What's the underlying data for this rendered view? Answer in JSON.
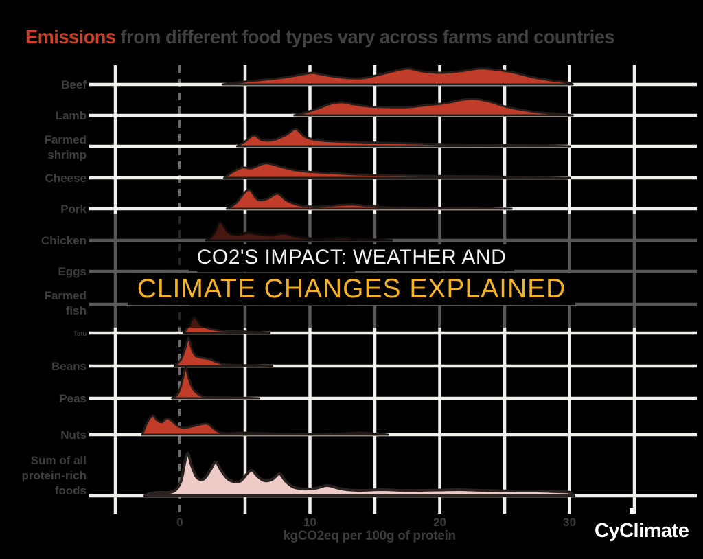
{
  "title": {
    "highlight": "Emissions",
    "rest": " from different food types vary across farms and countries"
  },
  "overlay": {
    "line1": "CO2'S IMPACT: WEATHER AND",
    "line2": "CLIMATE CHANGES EXPLAINED"
  },
  "watermark": "CyClimate",
  "colors": {
    "background": "#000000",
    "grid": "#f1efec",
    "ridge_fill": "#c23d29",
    "ridge_outline": "#241c19",
    "sum_fill": "#eecbc7",
    "sum_outline": "#2a2221",
    "zero_line": "#6b6b6b",
    "label_text": "#3d3d3d",
    "title_accent": "#c8422a",
    "title_text": "#414141",
    "overlay_line1": "#f2f2f2",
    "overlay_line2": "#f3b127",
    "watermark": "#ffffff"
  },
  "chart_data": {
    "type": "area",
    "subtype": "ridgeline",
    "title": "Emissions from different food types vary across farms and countries",
    "xlabel": "kgCO2eq per 100g of protein",
    "x_ticks": [
      0,
      10,
      20,
      30
    ],
    "x_range": [
      -7,
      40
    ],
    "grid": true,
    "zero_reference_line": "dashed",
    "categories": [
      "Beef",
      "Lamb",
      "Farmed\nshrimp",
      "Cheese",
      "Pork",
      "Chicken",
      "Eggs",
      "Farmed\nfish",
      "Tofu",
      "Beans",
      "Peas",
      "Nuts",
      "Sum of all\nprotein-rich\nfoods"
    ],
    "height_units": "relative density height in px above each category baseline",
    "series": [
      {
        "name": "Beef",
        "points": [
          [
            3.3,
            0
          ],
          [
            4.5,
            3
          ],
          [
            6,
            6
          ],
          [
            8,
            10
          ],
          [
            9.5,
            15
          ],
          [
            10.2,
            17
          ],
          [
            11,
            14
          ],
          [
            12.5,
            10
          ],
          [
            14,
            9
          ],
          [
            15.5,
            15
          ],
          [
            16.8,
            21
          ],
          [
            17.6,
            23
          ],
          [
            18.6,
            19
          ],
          [
            20,
            17
          ],
          [
            21.5,
            19
          ],
          [
            23,
            23
          ],
          [
            24,
            22
          ],
          [
            25.5,
            18
          ],
          [
            27,
            11
          ],
          [
            28.5,
            6
          ],
          [
            29.7,
            3
          ],
          [
            30.2,
            0
          ]
        ]
      },
      {
        "name": "Lamb",
        "points": [
          [
            8.8,
            0
          ],
          [
            9.6,
            4
          ],
          [
            10.6,
            10
          ],
          [
            11.6,
            17
          ],
          [
            12.5,
            19
          ],
          [
            13.4,
            16
          ],
          [
            14.5,
            13
          ],
          [
            16,
            12
          ],
          [
            17.5,
            12
          ],
          [
            19,
            15
          ],
          [
            20.5,
            18
          ],
          [
            21.8,
            23
          ],
          [
            22.7,
            24
          ],
          [
            23.8,
            20
          ],
          [
            25,
            13
          ],
          [
            26.3,
            8
          ],
          [
            27.8,
            4
          ],
          [
            29.3,
            2
          ],
          [
            30.2,
            0
          ]
        ]
      },
      {
        "name": "Farmed shrimp",
        "points": [
          [
            4.4,
            0
          ],
          [
            5.0,
            7
          ],
          [
            5.7,
            16
          ],
          [
            6.3,
            9
          ],
          [
            7.2,
            9
          ],
          [
            8.2,
            17
          ],
          [
            8.9,
            25
          ],
          [
            9.6,
            14
          ],
          [
            10.5,
            9
          ],
          [
            11.8,
            7
          ],
          [
            13.5,
            6
          ],
          [
            15.5,
            5
          ],
          [
            18,
            4
          ],
          [
            20.5,
            3
          ],
          [
            23,
            2.5
          ],
          [
            25.5,
            2
          ],
          [
            28,
            1
          ],
          [
            30,
            0
          ]
        ]
      },
      {
        "name": "Cheese",
        "points": [
          [
            3.4,
            0
          ],
          [
            4.1,
            9
          ],
          [
            4.8,
            15
          ],
          [
            5.5,
            14
          ],
          [
            6.3,
            20
          ],
          [
            6.8,
            21
          ],
          [
            7.6,
            17
          ],
          [
            8.6,
            12
          ],
          [
            9.8,
            9
          ],
          [
            11.5,
            7
          ],
          [
            13.5,
            5
          ],
          [
            16,
            4
          ],
          [
            18.5,
            3
          ],
          [
            21,
            2.5
          ],
          [
            24,
            2
          ],
          [
            27,
            1
          ],
          [
            30,
            0
          ]
        ]
      },
      {
        "name": "Pork",
        "points": [
          [
            3.6,
            0
          ],
          [
            4.3,
            8
          ],
          [
            5.0,
            24
          ],
          [
            5.4,
            27
          ],
          [
            6.0,
            13
          ],
          [
            6.8,
            15
          ],
          [
            7.5,
            22
          ],
          [
            8.2,
            12
          ],
          [
            9.2,
            5
          ],
          [
            10.5,
            3
          ],
          [
            12,
            5
          ],
          [
            13.3,
            6
          ],
          [
            14.5,
            4
          ],
          [
            16,
            2
          ],
          [
            18,
            1.5
          ],
          [
            20.5,
            1
          ],
          [
            23,
            0.7
          ],
          [
            25.5,
            0
          ]
        ]
      },
      {
        "name": "Chicken",
        "points": [
          [
            2.0,
            0
          ],
          [
            2.6,
            9
          ],
          [
            3.1,
            27
          ],
          [
            3.7,
            12
          ],
          [
            4.4,
            8
          ],
          [
            5.2,
            11
          ],
          [
            6.0,
            9
          ],
          [
            7.0,
            7
          ],
          [
            7.9,
            10
          ],
          [
            8.8,
            6
          ],
          [
            10,
            3
          ],
          [
            11.5,
            3
          ],
          [
            12.6,
            4
          ],
          [
            13.8,
            2
          ],
          [
            15.2,
            1
          ],
          [
            16.3,
            0
          ]
        ]
      },
      {
        "name": "Eggs",
        "points": [
          [
            1.4,
            0
          ],
          [
            1.9,
            12
          ],
          [
            2.3,
            22
          ],
          [
            2.9,
            11
          ],
          [
            3.6,
            7
          ],
          [
            4.5,
            5
          ],
          [
            5.8,
            4
          ],
          [
            7.2,
            3
          ],
          [
            9,
            2
          ],
          [
            11,
            1.5
          ],
          [
            13.4,
            0
          ]
        ]
      },
      {
        "name": "Farmed fish",
        "points": [
          [
            0.8,
            0
          ],
          [
            1.2,
            12
          ],
          [
            1.6,
            20
          ],
          [
            2.2,
            9
          ],
          [
            3,
            6
          ],
          [
            4,
            5
          ],
          [
            5.3,
            4
          ],
          [
            7,
            3
          ],
          [
            9,
            2
          ],
          [
            11,
            1.5
          ],
          [
            12.8,
            0
          ]
        ]
      },
      {
        "name": "Tofu",
        "points": [
          [
            0.3,
            0
          ],
          [
            0.8,
            14
          ],
          [
            1.1,
            24
          ],
          [
            1.6,
            12
          ],
          [
            2.2,
            7
          ],
          [
            3,
            4
          ],
          [
            4,
            3
          ],
          [
            5.2,
            2
          ],
          [
            6.9,
            0
          ]
        ]
      },
      {
        "name": "Beans",
        "points": [
          [
            -0.4,
            0
          ],
          [
            0.1,
            10
          ],
          [
            0.45,
            28
          ],
          [
            0.66,
            41
          ],
          [
            0.9,
            26
          ],
          [
            1.2,
            15
          ],
          [
            1.7,
            12
          ],
          [
            2.3,
            10
          ],
          [
            2.8,
            6
          ],
          [
            3.3,
            3
          ],
          [
            4.2,
            1.5
          ],
          [
            5.5,
            1
          ],
          [
            7.1,
            0
          ]
        ]
      },
      {
        "name": "Peas",
        "points": [
          [
            -0.6,
            0
          ],
          [
            -0.1,
            8
          ],
          [
            0.25,
            30
          ],
          [
            0.45,
            44
          ],
          [
            0.7,
            28
          ],
          [
            1.0,
            14
          ],
          [
            1.4,
            6
          ],
          [
            1.9,
            2.5
          ],
          [
            2.8,
            1.5
          ],
          [
            4.5,
            1
          ],
          [
            6.1,
            0
          ]
        ]
      },
      {
        "name": "Nuts",
        "points": [
          [
            -2.9,
            0
          ],
          [
            -2.5,
            18
          ],
          [
            -2.1,
            28
          ],
          [
            -1.8,
            22
          ],
          [
            -1.4,
            18
          ],
          [
            -1.0,
            24
          ],
          [
            -0.6,
            20
          ],
          [
            -0.2,
            13
          ],
          [
            0.3,
            10
          ],
          [
            0.9,
            12
          ],
          [
            1.6,
            15
          ],
          [
            2.1,
            16
          ],
          [
            2.6,
            9
          ],
          [
            3.1,
            3
          ],
          [
            3.9,
            2
          ],
          [
            4.8,
            3
          ],
          [
            5.7,
            2.5
          ],
          [
            6.7,
            2
          ],
          [
            7.9,
            1
          ],
          [
            9.5,
            0.7
          ],
          [
            11.5,
            0.7
          ],
          [
            12.8,
            2
          ],
          [
            14,
            3
          ],
          [
            15,
            1.5
          ],
          [
            16,
            0
          ]
        ]
      },
      {
        "name": "Sum of all protein-rich foods",
        "points": [
          [
            -2.7,
            0
          ],
          [
            -2.2,
            4
          ],
          [
            -1.5,
            5
          ],
          [
            -0.8,
            5
          ],
          [
            -0.3,
            9
          ],
          [
            0.1,
            22
          ],
          [
            0.4,
            50
          ],
          [
            0.62,
            62
          ],
          [
            0.9,
            44
          ],
          [
            1.3,
            27
          ],
          [
            1.8,
            24
          ],
          [
            2.3,
            36
          ],
          [
            2.75,
            49
          ],
          [
            3.2,
            36
          ],
          [
            3.8,
            23
          ],
          [
            4.6,
            21
          ],
          [
            5.2,
            33
          ],
          [
            5.55,
            37
          ],
          [
            6.0,
            28
          ],
          [
            6.5,
            22
          ],
          [
            7.1,
            24
          ],
          [
            7.65,
            32
          ],
          [
            8.1,
            22
          ],
          [
            8.7,
            13
          ],
          [
            9.5,
            10
          ],
          [
            10.4,
            11
          ],
          [
            11.3,
            15
          ],
          [
            12,
            12
          ],
          [
            12.8,
            9
          ],
          [
            14,
            8
          ],
          [
            15.5,
            9
          ],
          [
            17,
            8
          ],
          [
            18.5,
            8
          ],
          [
            20,
            8.5
          ],
          [
            21.5,
            9
          ],
          [
            23,
            8
          ],
          [
            24.5,
            7.5
          ],
          [
            26,
            7
          ],
          [
            27.5,
            7
          ],
          [
            29,
            6
          ],
          [
            30,
            5
          ],
          [
            30.3,
            0
          ]
        ]
      }
    ]
  }
}
